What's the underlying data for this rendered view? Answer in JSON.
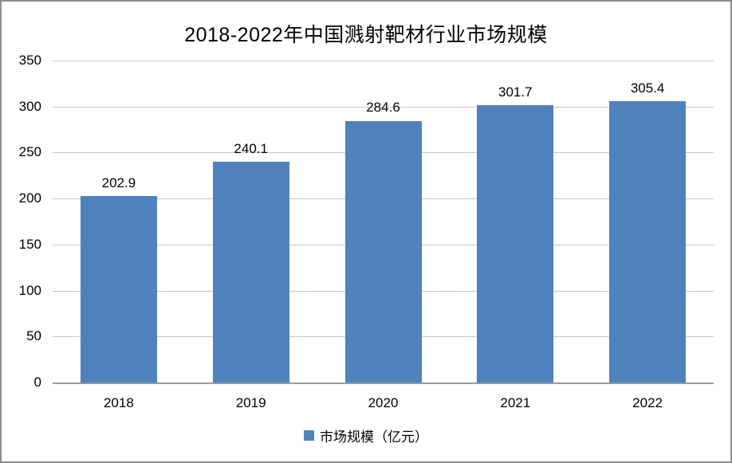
{
  "chart_data": {
    "type": "bar",
    "title": "2018-2022年中国溅射靶材行业市场规模",
    "categories": [
      "2018",
      "2019",
      "2020",
      "2021",
      "2022"
    ],
    "series": [
      {
        "name": "市场规模（亿元）",
        "values": [
          202.9,
          240.1,
          284.6,
          301.7,
          305.4
        ]
      }
    ],
    "value_labels": [
      "202.9",
      "240.1",
      "284.6",
      "301.7",
      "305.4"
    ],
    "ylabel": "",
    "xlabel": "",
    "ylim": [
      0,
      350
    ],
    "yticks": [
      0,
      50,
      100,
      150,
      200,
      250,
      300,
      350
    ],
    "grid": "horizontal",
    "legend_position": "bottom",
    "legend": "市场规模（亿元）",
    "colors": {
      "bar": "#4F81BD",
      "gridline": "#c8c8c8",
      "axis_baseline": "#9a9a9a",
      "border": "#8c8c8c",
      "text": "#000000"
    }
  }
}
